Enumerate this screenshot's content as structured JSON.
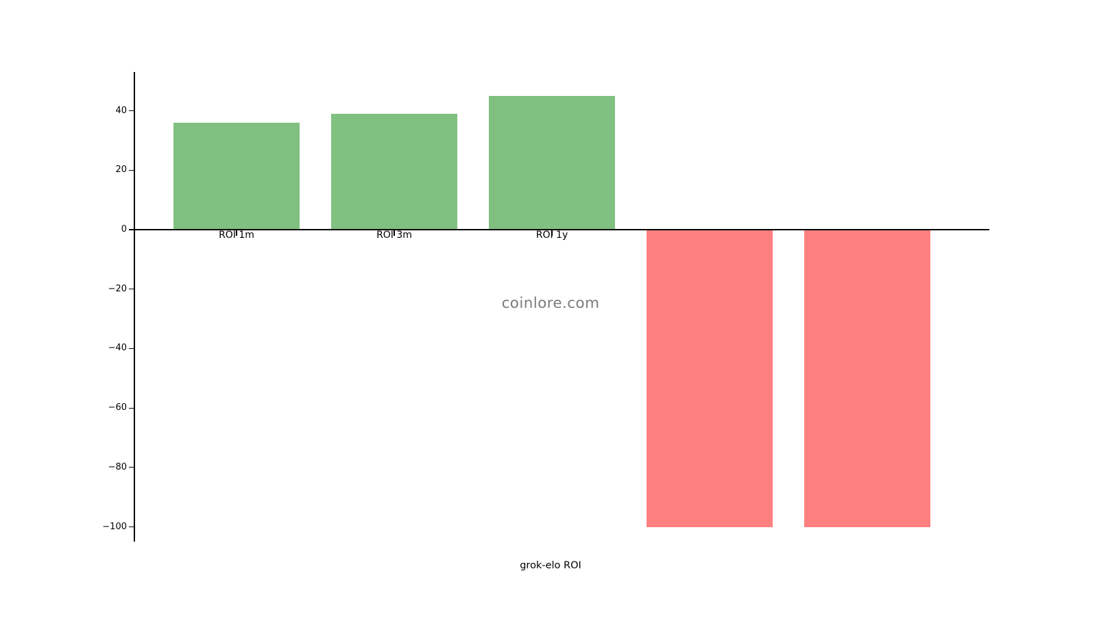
{
  "chart_data": {
    "type": "bar",
    "categories": [
      "ROI 1m",
      "ROI 3m",
      "ROI 1y",
      "",
      ""
    ],
    "values": [
      36,
      39,
      45,
      -100,
      -100
    ],
    "bar_colors": [
      "#80c080",
      "#80c080",
      "#80c080",
      "#ff8080",
      "#ff8080"
    ],
    "yticks": [
      40,
      20,
      0,
      -20,
      -40,
      -60,
      -80,
      -100
    ],
    "ytick_labels": [
      "40",
      "20",
      "0",
      "−20",
      "−40",
      "−60",
      "−80",
      "−100"
    ],
    "ylim": [
      -107,
      52.5
    ],
    "title": "grok-elo ROI",
    "xlabel": "grok-elo ROI",
    "ylabel": "",
    "grid": false,
    "legend": null,
    "watermark": "coinlore.com",
    "colors": {
      "positive": "#80c080",
      "negative": "#ff8080",
      "axis": "#000000",
      "watermark": "#7a7a7a",
      "background": "#ffffff"
    }
  }
}
